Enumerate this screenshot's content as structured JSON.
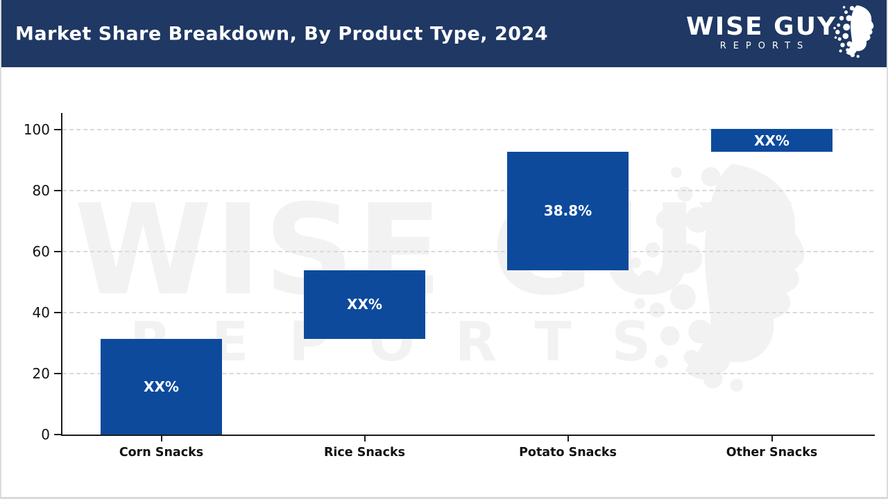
{
  "header": {
    "title": "Market Share Breakdown, By Product Type, 2024",
    "logo": {
      "line1": "WISE GUY",
      "line2": "REPORTS"
    }
  },
  "watermark": {
    "line1": "WISE GUY",
    "line2": "REPORTS"
  },
  "colors": {
    "header_bg": "#1f3864",
    "bar": "#0d4a9c",
    "grid": "#d9d9d9",
    "axis": "#1a1a1a",
    "watermark": "#f2f2f2",
    "bar_label_text": "#ffffff",
    "title_text": "#ffffff"
  },
  "chart_data": {
    "type": "bar",
    "subtype": "waterfall",
    "title": "Market Share Breakdown, By Product Type, 2024",
    "categories": [
      "Corn Snacks",
      "Rice Snacks",
      "Potato Snacks",
      "Other Snacks"
    ],
    "segments": [
      {
        "category": "Corn Snacks",
        "start": 0,
        "end": 31.4,
        "value": 31.4,
        "label": "XX%"
      },
      {
        "category": "Rice Snacks",
        "start": 31.4,
        "end": 53.9,
        "value": 22.5,
        "label": "XX%"
      },
      {
        "category": "Potato Snacks",
        "start": 53.9,
        "end": 92.7,
        "value": 38.8,
        "label": "38.8%"
      },
      {
        "category": "Other Snacks",
        "start": 92.7,
        "end": 100.2,
        "value": 7.5,
        "label": "XX%"
      }
    ],
    "xlabel": "",
    "ylabel": "",
    "ylim": [
      0,
      105
    ],
    "yticks": [
      0,
      20,
      40,
      60,
      80,
      100
    ],
    "grid": "horizontal-dashed",
    "legend": "none"
  }
}
